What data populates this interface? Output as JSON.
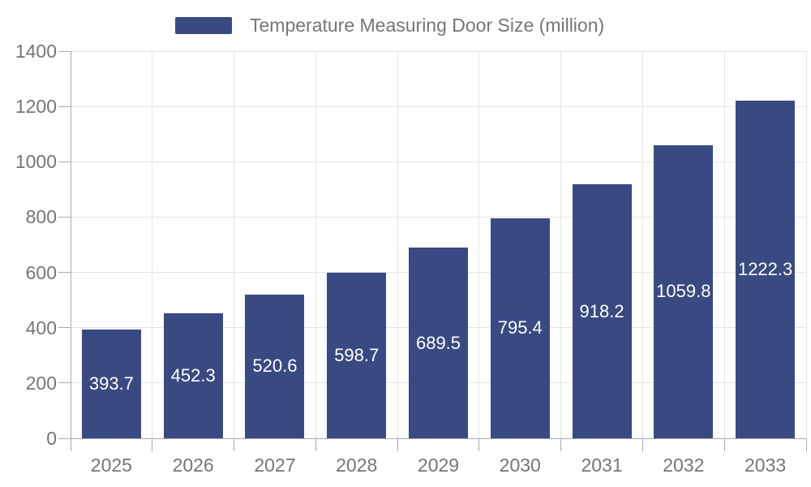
{
  "chart_data": {
    "type": "bar",
    "title": "Temperature Measuring Door Size (million)",
    "legend_entries": [
      "Temperature Measuring Door Size (million)"
    ],
    "legend_position": "top",
    "categories": [
      "2025",
      "2026",
      "2027",
      "2028",
      "2029",
      "2030",
      "2031",
      "2032",
      "2033"
    ],
    "series": [
      {
        "name": "Temperature Measuring Door Size (million)",
        "values": [
          393.7,
          452.3,
          520.6,
          598.7,
          689.5,
          795.4,
          918.2,
          1059.8,
          1222.3
        ]
      }
    ],
    "value_labels": [
      "393.7",
      "452.3",
      "520.6",
      "598.7",
      "689.5",
      "795.4",
      "918.2",
      "1059.8",
      "1222.3"
    ],
    "xlabel": "",
    "ylabel": "",
    "ylim": [
      0,
      1400
    ],
    "y_ticks": [
      0,
      200,
      400,
      600,
      800,
      1000,
      1200,
      1400
    ],
    "grid": true,
    "colors": {
      "bar": "#394a82",
      "value_label": "#ffffff",
      "axis_label": "#757575",
      "legend_text": "#757575",
      "grid_line": "#e4e4e4",
      "axis_line": "#aaaaaa",
      "background": "#ffffff"
    }
  }
}
